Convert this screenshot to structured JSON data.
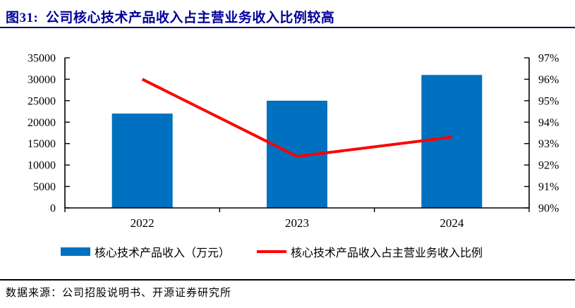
{
  "figure": {
    "title": "图31:  公司核心技术产品收入占主营业务收入比例较高",
    "source": "数据来源：公司招股说明书、开源证券研究所"
  },
  "colors": {
    "title_text": "#000099",
    "title_rule": "#000066",
    "bar": "#0070C0",
    "line": "#FF0000",
    "axis": "#000000",
    "source_rule": "#000000",
    "background": "#FFFFFF"
  },
  "chart_data": {
    "type": "bar+line",
    "title": "图31:  公司核心技术产品收入占主营业务收入比例较高",
    "categories": [
      "2022",
      "2023",
      "2024"
    ],
    "series": [
      {
        "name": "核心技术产品收入（万元）",
        "type": "bar",
        "axis": "left",
        "color": "#0070C0",
        "values": [
          22000,
          25000,
          31000
        ]
      },
      {
        "name": "核心技术产品收入占主营业务收入比例",
        "type": "line",
        "axis": "right",
        "color": "#FF0000",
        "values": [
          96.0,
          92.4,
          93.3
        ],
        "unit": "%"
      }
    ],
    "left_axis": {
      "min": 0,
      "max": 35000,
      "step": 5000
    },
    "right_axis": {
      "min": 90,
      "max": 97,
      "step": 1,
      "unit": "%"
    },
    "grid": false,
    "legend_position": "bottom"
  }
}
